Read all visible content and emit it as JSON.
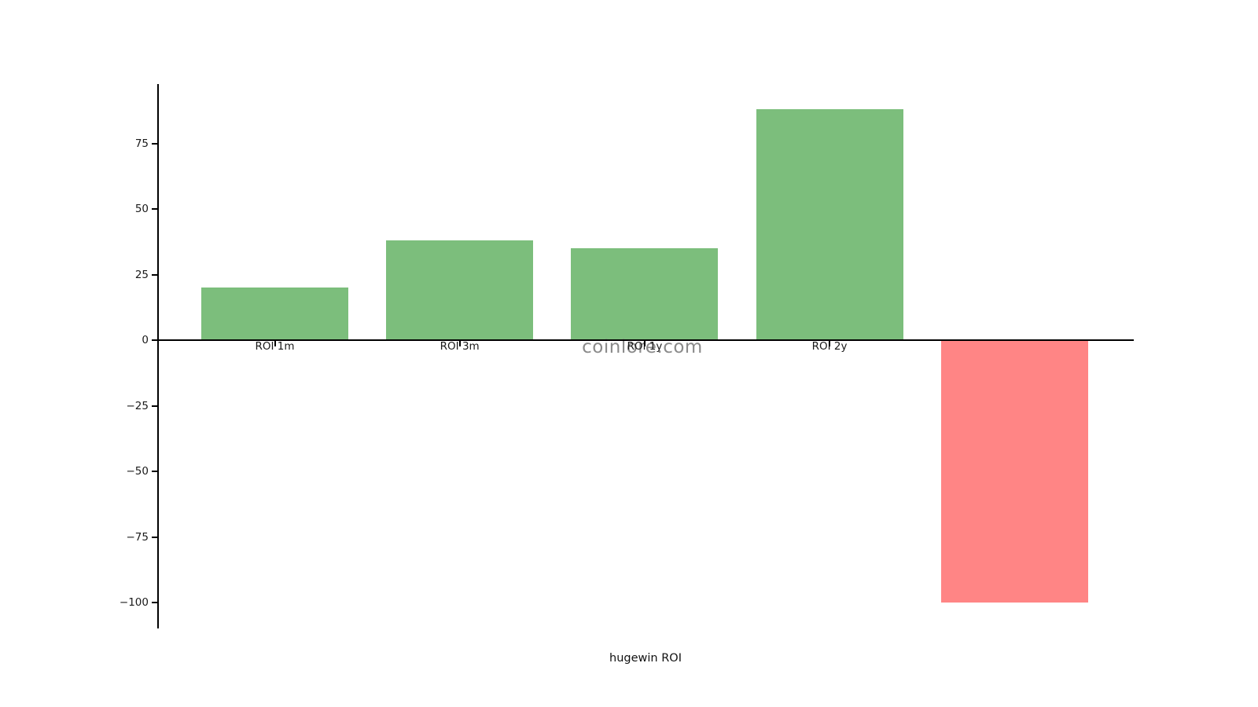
{
  "page": {
    "background": "#ffffff"
  },
  "watermark": {
    "text": "coinlore.com",
    "color": "#8a8a8a"
  },
  "chart_data": {
    "type": "bar",
    "title": "",
    "xlabel": "hugewin ROI",
    "ylabel": "",
    "categories": [
      "ROI 1m",
      "ROI 3m",
      "ROI 1y",
      "ROI 2y",
      ""
    ],
    "values": [
      20,
      38,
      35,
      88,
      -100
    ],
    "yticks": [
      {
        "value": 75,
        "label": "75"
      },
      {
        "value": 50,
        "label": "50"
      },
      {
        "value": 25,
        "label": "25"
      },
      {
        "value": 0,
        "label": "0"
      },
      {
        "value": -25,
        "label": "−25"
      },
      {
        "value": -50,
        "label": "−50"
      },
      {
        "value": -75,
        "label": "−75"
      },
      {
        "value": -100,
        "label": "−100"
      }
    ],
    "ylim": [
      -110,
      98
    ],
    "grid": false,
    "legend": "none",
    "positive_color": "#7cbe7c",
    "negative_color": "#ff8585",
    "axis_color": "#000000",
    "tick_text_color": "#1a1a1a"
  }
}
